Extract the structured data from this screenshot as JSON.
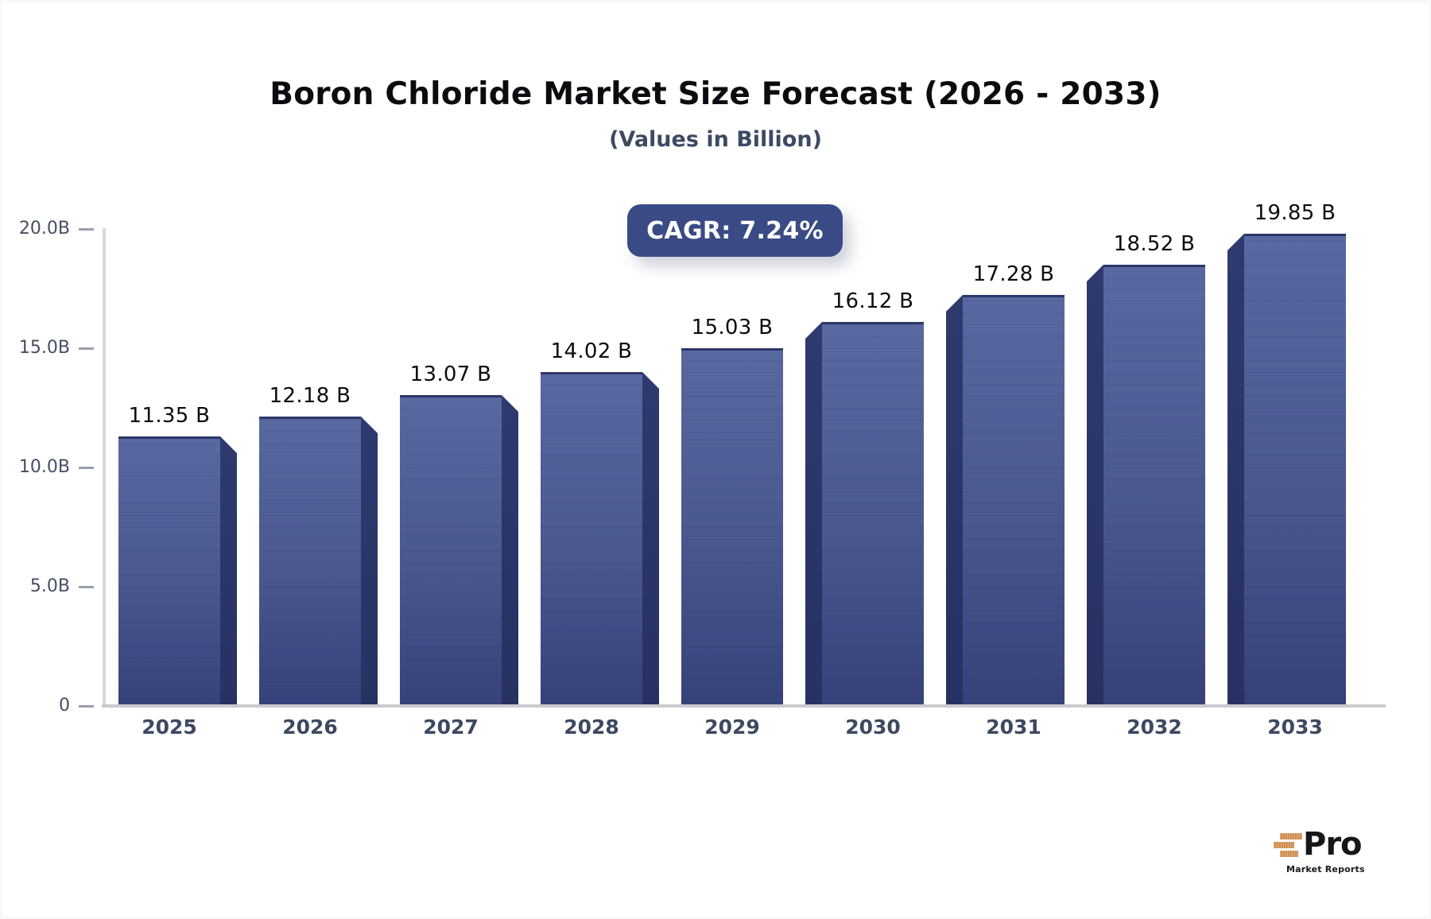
{
  "header": {
    "title": "Boron Chloride Market Size Forecast (2026 - 2033)",
    "subtitle": "(Values in Billion)",
    "cagr_badge": "CAGR: 7.24%"
  },
  "chart_data": {
    "type": "bar",
    "title": "Boron Chloride Market Size Forecast (2026 - 2033)",
    "subtitle": "(Values in Billion)",
    "cagr_percent": 7.24,
    "categories": [
      "2025",
      "2026",
      "2027",
      "2028",
      "2029",
      "2030",
      "2031",
      "2032",
      "2033"
    ],
    "values": [
      11.35,
      12.18,
      13.07,
      14.02,
      15.03,
      16.12,
      17.28,
      18.52,
      19.85
    ],
    "value_labels": [
      "11.35 B",
      "12.18 B",
      "13.07 B",
      "14.02 B",
      "15.03 B",
      "16.12 B",
      "17.28 B",
      "18.52 B",
      "19.85 B"
    ],
    "xlabel": "",
    "ylabel": "",
    "ylim": [
      0,
      20
    ],
    "yticks": [
      {
        "value": 0,
        "label": "0"
      },
      {
        "value": 5,
        "label": "5.0B"
      },
      {
        "value": 10,
        "label": "10.0B"
      },
      {
        "value": 15,
        "label": "15.0B"
      },
      {
        "value": 20,
        "label": "20.0B"
      }
    ],
    "grid": false,
    "legend": false,
    "bar_style": "3d-extruded",
    "colors": {
      "bar_face_top": "#5968a1",
      "bar_face_bottom": "#36417a",
      "bar_side": "#2b3568",
      "badge_background": "#3a4a85",
      "badge_text": "#ffffff",
      "axis_line": "#c9cbd1",
      "tick_text": "#454f63",
      "category_text": "#3c4960",
      "value_text": "#0c0c0f"
    }
  },
  "logo": {
    "brand": "Pro",
    "tagline": "Market Reports",
    "stripe_color": "#cf8d4d"
  }
}
